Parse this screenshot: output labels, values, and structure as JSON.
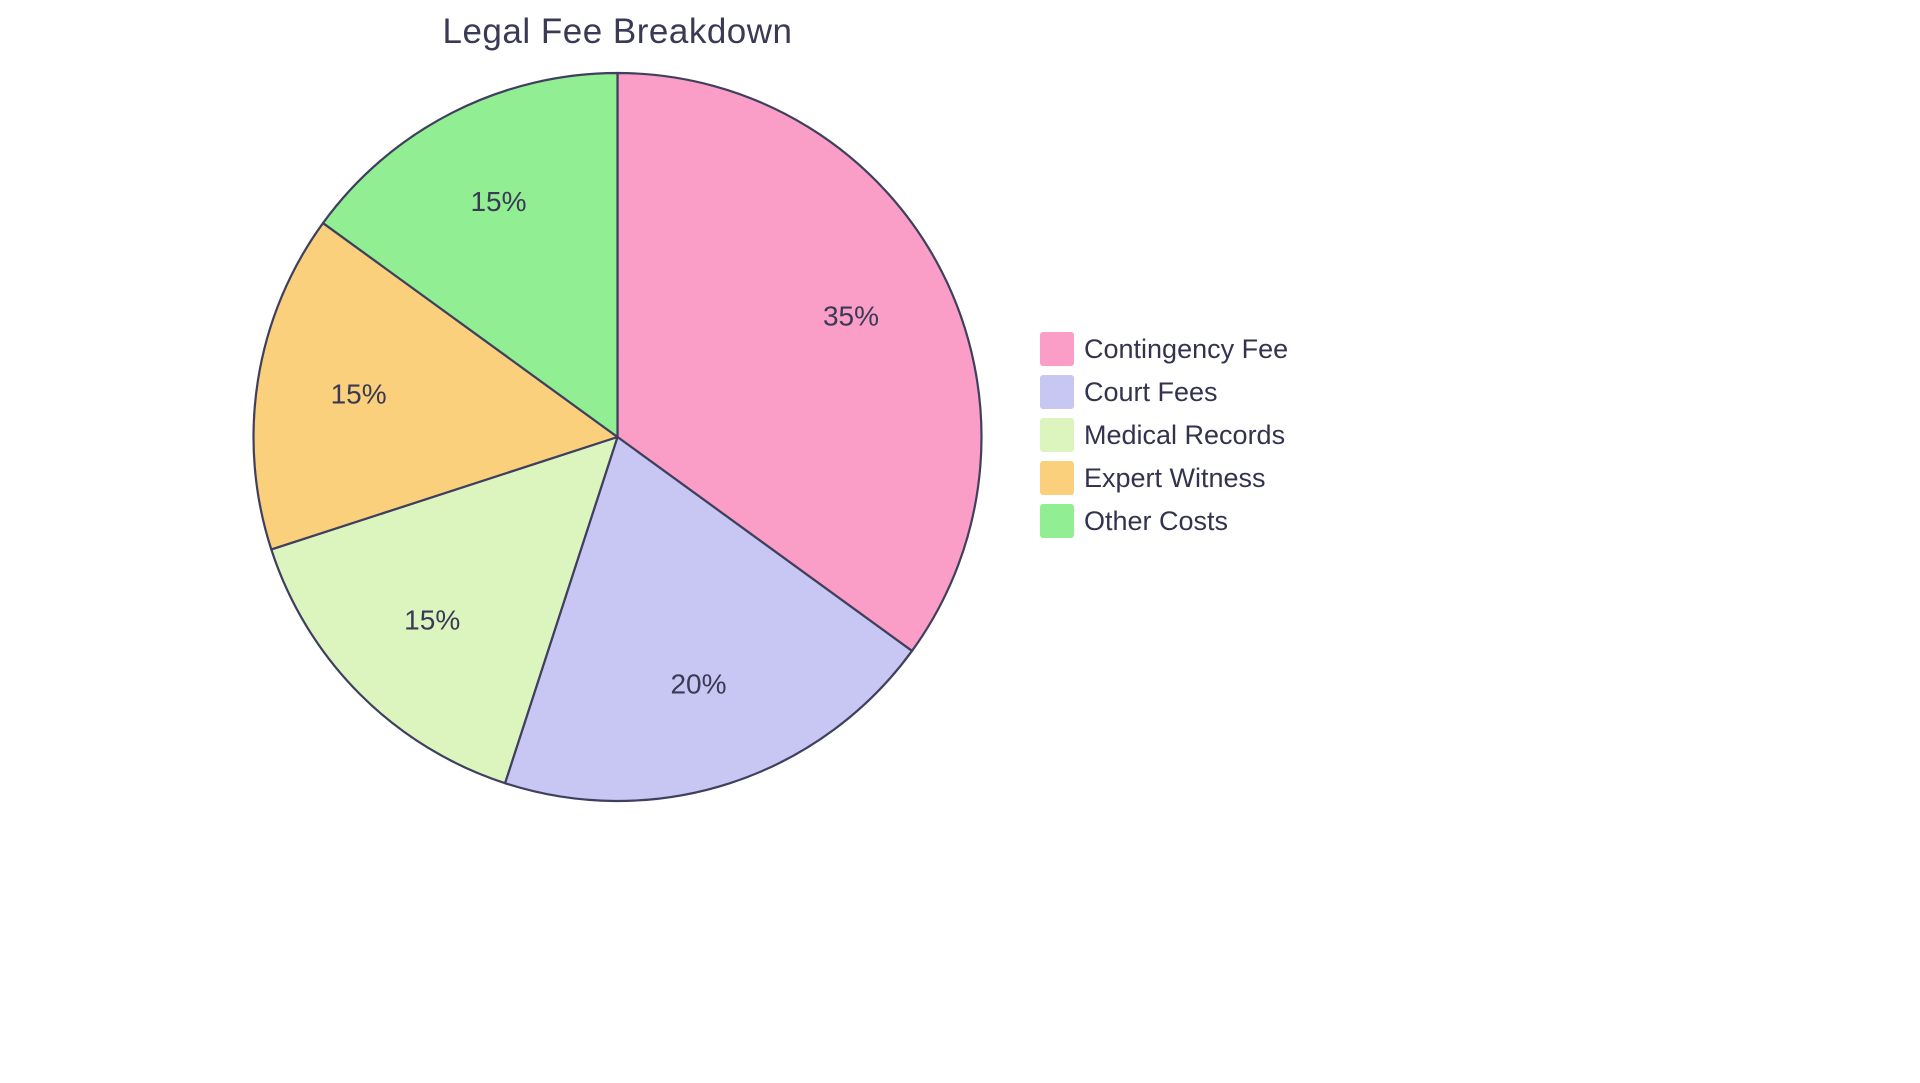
{
  "colors": {
    "outline": "#3f3f5e",
    "label_text": "#3a3a55",
    "legend_text": "#33334d",
    "background": "#ffffff"
  },
  "chart_data": {
    "type": "pie",
    "title": "Legal Fee Breakdown",
    "categories": [
      "Contingency Fee",
      "Court Fees",
      "Medical Records",
      "Expert Witness",
      "Other Costs"
    ],
    "values": [
      35,
      20,
      15,
      15,
      15
    ],
    "labels": [
      "35%",
      "20%",
      "15%",
      "15%",
      "15%"
    ],
    "slice_colors": [
      "#fa9ec7",
      "#c8c6f2",
      "#dcf5be",
      "#fbd07d",
      "#92ee92"
    ],
    "start_angle_deg": 0,
    "direction": "clockwise",
    "legend_position": "right",
    "data_labels": "percent-inside"
  }
}
